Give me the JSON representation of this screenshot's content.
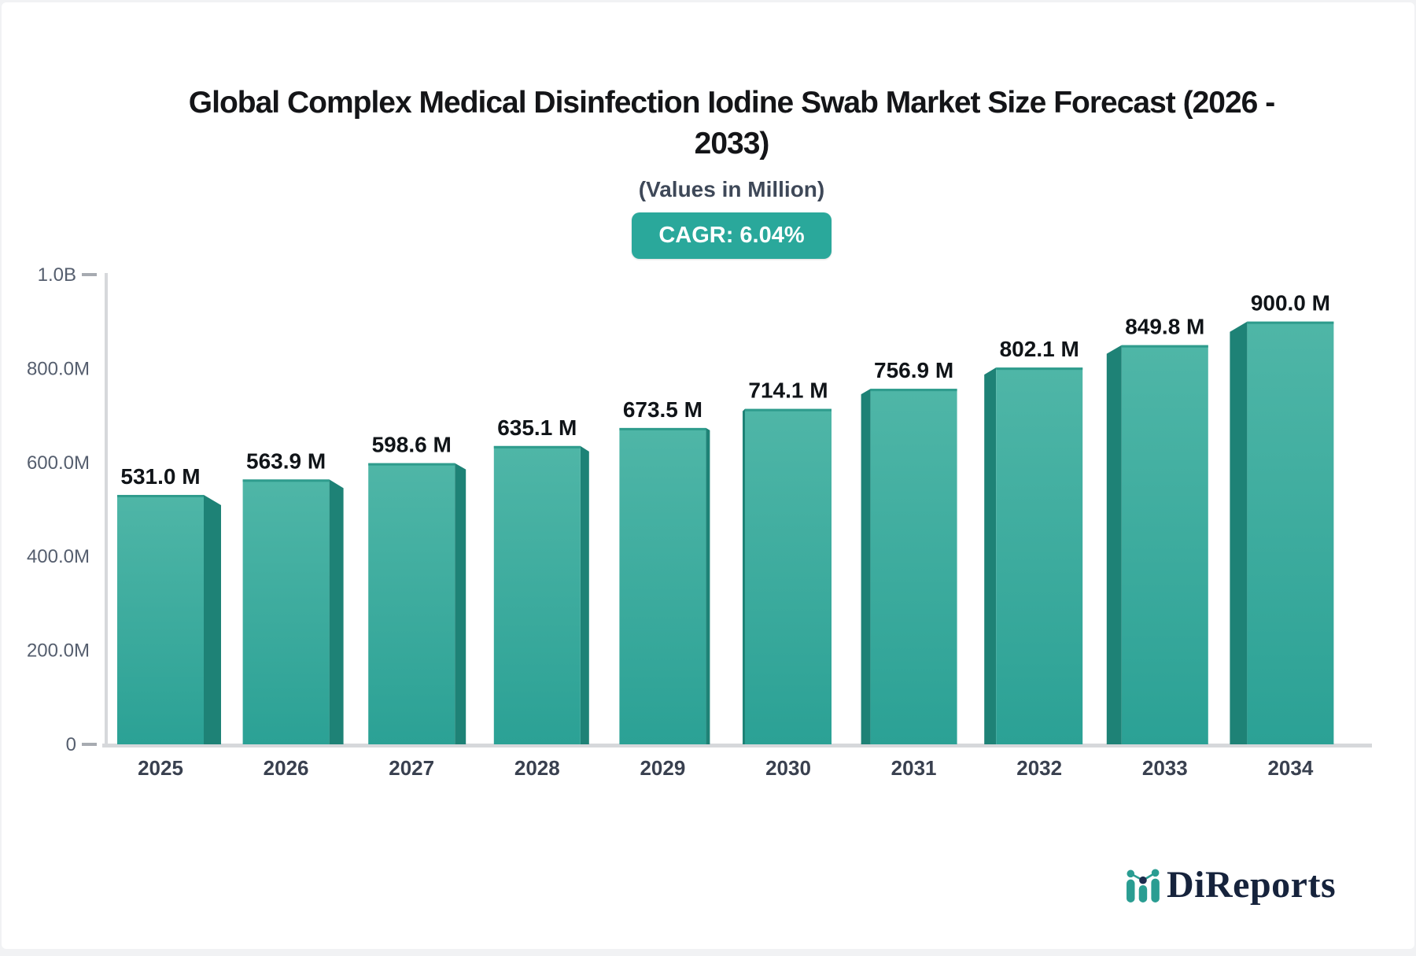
{
  "page": {
    "background": "#f1f2f4",
    "card_background": "#ffffff"
  },
  "header": {
    "title_lines": [
      "Global Complex Medical Disinfection Iodine Swab Market Size Forecast (2026 -",
      "2033)"
    ],
    "subtitle": "(Values in Million)",
    "cagr_badge": "CAGR: 6.04%",
    "badge_color": "#2aa89b"
  },
  "chart_data": {
    "type": "bar",
    "title": "Global Complex Medical Disinfection Iodine Swab Market Size Forecast (2026 - 2033)",
    "subtitle": "(Values in Million)",
    "cagr": "6.04%",
    "categories": [
      "2025",
      "2026",
      "2027",
      "2028",
      "2029",
      "2030",
      "2031",
      "2032",
      "2033",
      "2034"
    ],
    "values": [
      531.0,
      563.9,
      598.6,
      635.1,
      673.5,
      714.1,
      756.9,
      802.1,
      849.8,
      900.0
    ],
    "value_labels": [
      "531.0 M",
      "563.9 M",
      "598.6 M",
      "635.1 M",
      "673.5 M",
      "714.1 M",
      "756.9 M",
      "802.1 M",
      "849.8 M",
      "900.0 M"
    ],
    "unit": "Million",
    "ylim": [
      0,
      1000
    ],
    "y_tick_values": [
      0,
      200,
      400,
      600,
      800,
      1000
    ],
    "y_tick_labels_bottom_up": [
      "0",
      "200.0M",
      "400.0M",
      "600.0M",
      "800.0M",
      "1.0B"
    ],
    "grid": false,
    "legend": false,
    "bar_style": {
      "front_top": "#4fb6a7",
      "front_bottom": "#2ba195",
      "side": "#1e8276",
      "top_edge": "#2f9c8d"
    },
    "axis_color": "#d6d8db",
    "tick_color": "#a7abb1",
    "y_label_color": "#555e6e",
    "x_label_color": "#39404f",
    "value_label_color": "#101418"
  },
  "logo": {
    "text": "DiReports",
    "icon": "bar-chart-with-trend-dots-icon",
    "teal": "#2a9d92",
    "navy": "#1d2c4d",
    "text_color": "#16233c"
  }
}
